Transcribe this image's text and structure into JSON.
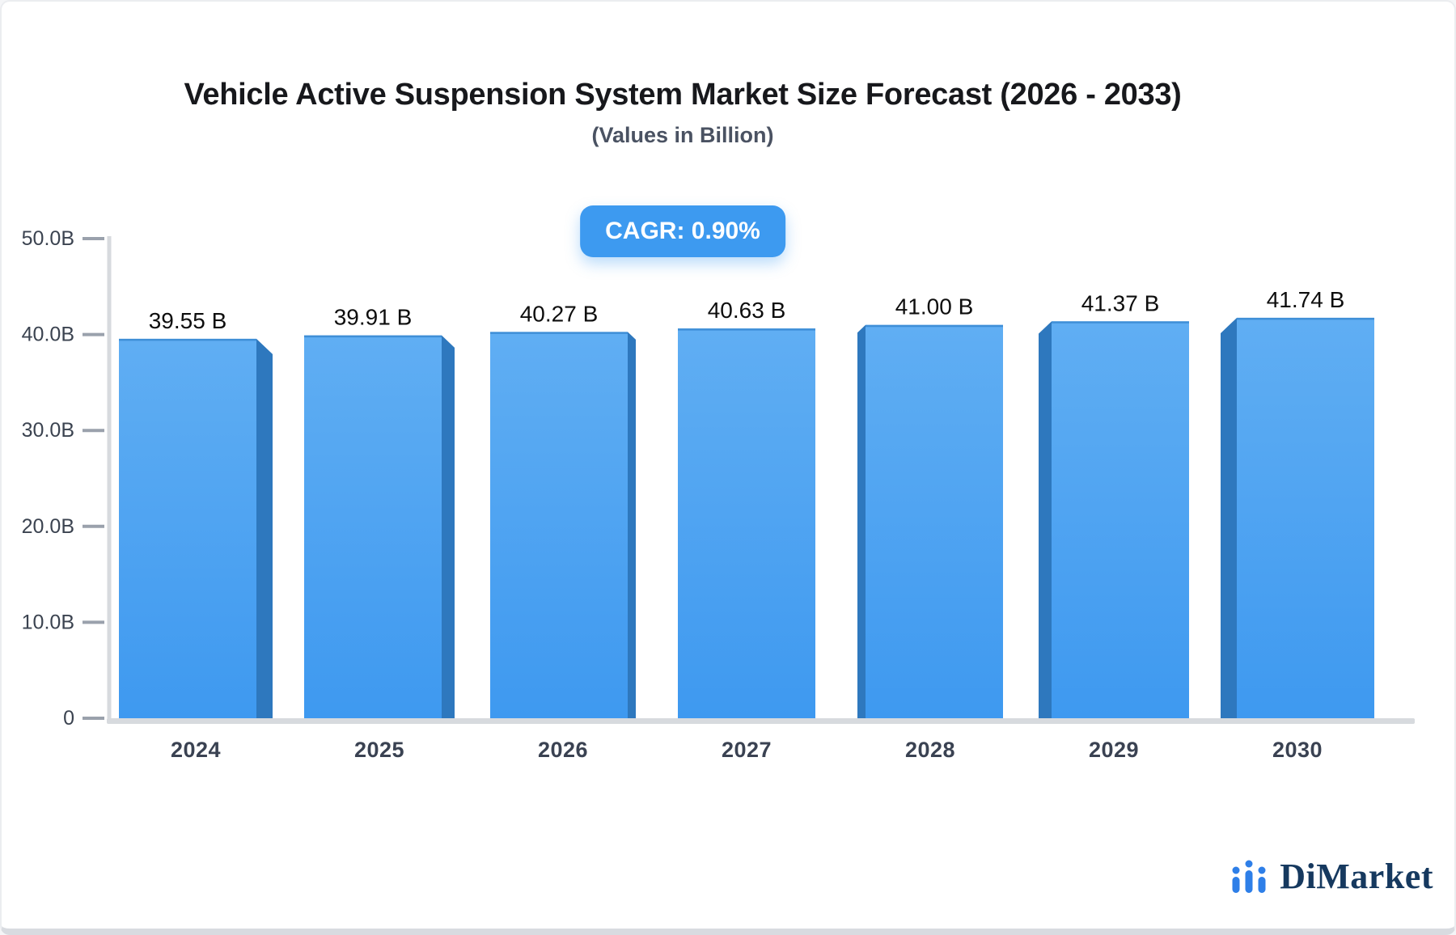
{
  "header": {
    "title": "Vehicle Active Suspension System Market Size Forecast (2026 - 2033)",
    "subtitle": "(Values in Billion)",
    "cagr_badge": "CAGR: 0.90%",
    "badge_color": "#3d9af0"
  },
  "chart_data": {
    "type": "bar",
    "title": "Vehicle Active Suspension System Market Size Forecast (2026 - 2033)",
    "subtitle": "(Values in Billion)",
    "unit": "Billion",
    "cagr": "0.90%",
    "categories": [
      "2024",
      "2025",
      "2026",
      "2027",
      "2028",
      "2029",
      "2030"
    ],
    "values": [
      39.55,
      39.91,
      40.27,
      40.63,
      41.0,
      41.37,
      41.74
    ],
    "bar_labels": [
      "39.55 B",
      "39.91 B",
      "40.27 B",
      "40.63 B",
      "41.00 B",
      "41.37 B",
      "41.74 B"
    ],
    "ylim": [
      0,
      50
    ],
    "yticks": [
      {
        "label": "50.0B",
        "value": 50
      },
      {
        "label": "40.0B",
        "value": 40
      },
      {
        "label": "30.0B",
        "value": 30
      },
      {
        "label": "20.0B",
        "value": 20
      },
      {
        "label": "10.0B",
        "value": 10
      },
      {
        "label": "0",
        "value": 0
      }
    ],
    "grid": false,
    "legend": false,
    "effect": "3d-perspective",
    "style": {
      "bar_face_top": "#60aef3",
      "bar_face_bottom": "#3e99f0",
      "bar_side": "#2e78be",
      "bar_top_edge": "#3f8fd7",
      "axis_line_color": "#d7dade",
      "tick_color": "#9aa1ac",
      "tick_label_color": "#3b4350",
      "x_label_color": "#3a4252",
      "value_label_color": "#0e0e0e"
    }
  },
  "footer": {
    "brand": "DiMarket",
    "brand_color": "#16395f",
    "icon": "bar-chart-logo-icon",
    "icon_color": "#2e7fe8"
  }
}
